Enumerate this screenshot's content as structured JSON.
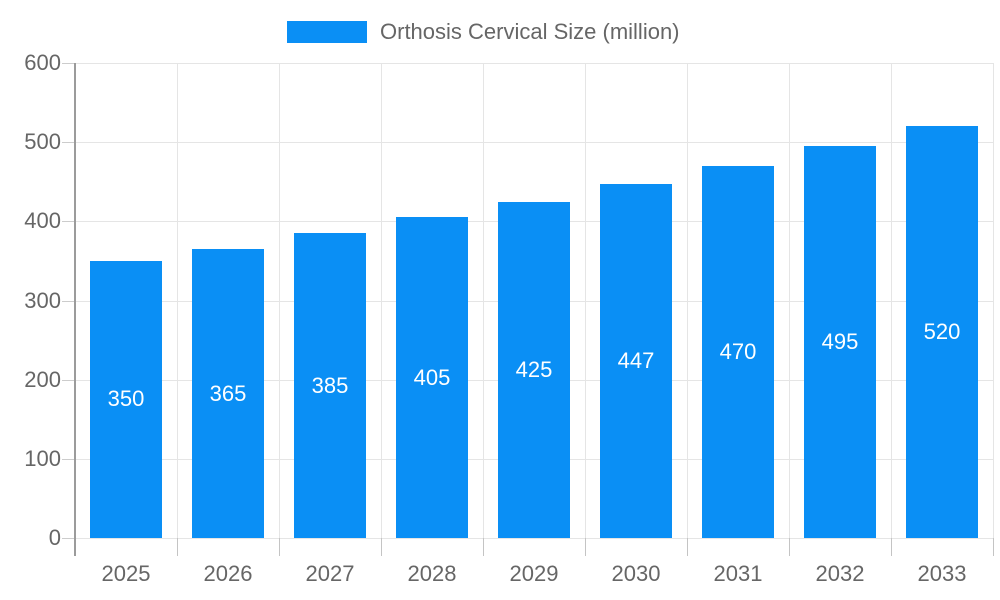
{
  "legend": {
    "label": "Orthosis Cervical Size (million)"
  },
  "colors": {
    "bar": "#0a8ff5",
    "grid": "#e5e5e5",
    "axis_line": "#9b9b9b",
    "tick": "#cccccc",
    "axis_text": "#666666",
    "bar_label_text": "#ffffff",
    "background": "#ffffff"
  },
  "chart_data": {
    "type": "bar",
    "title": "Orthosis Cervical Size (million)",
    "categories": [
      "2025",
      "2026",
      "2027",
      "2028",
      "2029",
      "2030",
      "2031",
      "2032",
      "2033"
    ],
    "values": [
      350,
      365,
      385,
      405,
      425,
      447,
      470,
      495,
      520
    ],
    "xlabel": "",
    "ylabel": "",
    "ylim": [
      0,
      600
    ],
    "ytick_step": 100,
    "grid": true,
    "legend_position": "top",
    "value_labels": "inside-center"
  }
}
